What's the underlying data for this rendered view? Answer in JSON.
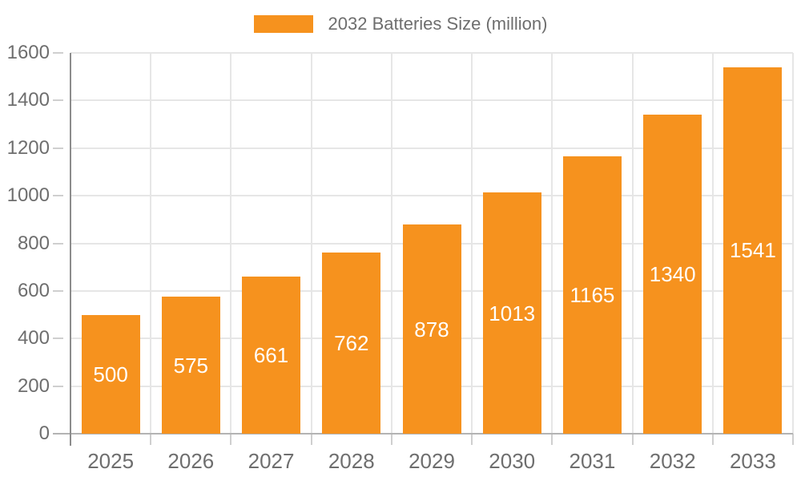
{
  "legend": {
    "label": "2032 Batteries Size (million)"
  },
  "chart_data": {
    "type": "bar",
    "title": "2032 Batteries Size (million)",
    "legend_position": "top",
    "categories": [
      "2025",
      "2026",
      "2027",
      "2028",
      "2029",
      "2030",
      "2031",
      "2032",
      "2033"
    ],
    "series": [
      {
        "name": "2032 Batteries Size (million)",
        "values": [
          500,
          575,
          661,
          762,
          878,
          1013,
          1165,
          1340,
          1541
        ]
      }
    ],
    "bar_value_labels": [
      "500",
      "575",
      "661",
      "762",
      "878",
      "1013",
      "1165",
      "1340",
      "1541"
    ],
    "xlabel": "",
    "ylabel": "",
    "ylim": [
      0,
      1600
    ],
    "yticks": [
      0,
      200,
      400,
      600,
      800,
      1000,
      1200,
      1400,
      1600
    ],
    "grid": "both",
    "colors": {
      "bar": "#F6921E",
      "bar_value_text": "#FFFFFF",
      "gridline": "#E6E6E6",
      "baseline": "#B3B3B3",
      "y_axis_line": "#8C8C8C",
      "tick": "#CFCFCF",
      "axis_text": "#6E6E6E"
    }
  }
}
